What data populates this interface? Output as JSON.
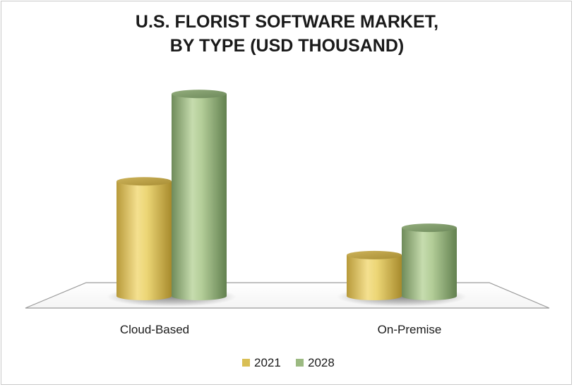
{
  "chart_data": {
    "type": "bar",
    "title_lines": [
      "U.S. FLORIST SOFTWARE MARKET,",
      "BY TYPE (USD THOUSAND)"
    ],
    "categories": [
      "Cloud-Based",
      "On-Premise"
    ],
    "series": [
      {
        "name": "2021",
        "values": [
          42,
          15
        ],
        "color": "#e7cf6a"
      },
      {
        "name": "2028",
        "values": [
          74,
          25
        ],
        "color": "#a9c58f"
      }
    ],
    "ylim": [
      0,
      80
    ],
    "xlabel": "",
    "ylabel": "",
    "grid": false,
    "legend_position": "bottom",
    "style": "3d-cylinder"
  }
}
